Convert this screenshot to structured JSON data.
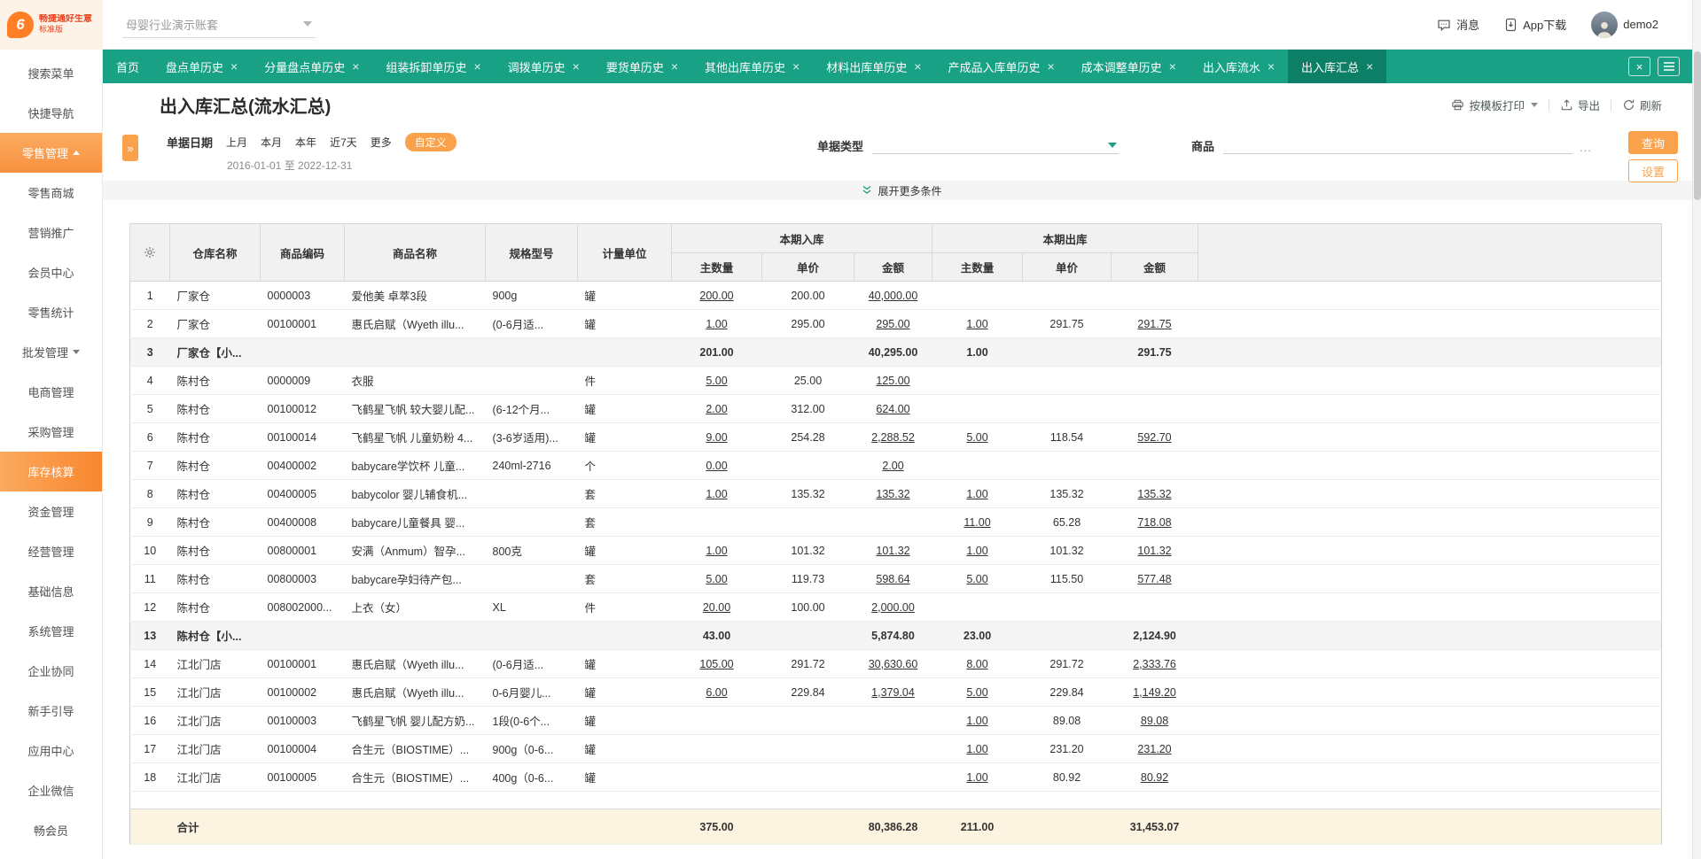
{
  "topbar": {
    "logo_title": "畅捷通好生意",
    "logo_subtitle": "标准版",
    "account_select": "母婴行业演示账套",
    "messages_label": "消息",
    "app_download_label": "App下载",
    "username": "demo2"
  },
  "tabs": {
    "items": [
      {
        "label": "首页",
        "closable": false,
        "active": false
      },
      {
        "label": "盘点单历史",
        "closable": true,
        "active": false
      },
      {
        "label": "分量盘点单历史",
        "closable": true,
        "active": false
      },
      {
        "label": "组装拆卸单历史",
        "closable": true,
        "active": false
      },
      {
        "label": "调拨单历史",
        "closable": true,
        "active": false
      },
      {
        "label": "要货单历史",
        "closable": true,
        "active": false
      },
      {
        "label": "其他出库单历史",
        "closable": true,
        "active": false
      },
      {
        "label": "材料出库单历史",
        "closable": true,
        "active": false
      },
      {
        "label": "产成品入库单历史",
        "closable": true,
        "active": false
      },
      {
        "label": "成本调整单历史",
        "closable": true,
        "active": false
      },
      {
        "label": "出入库流水",
        "closable": true,
        "active": false
      },
      {
        "label": "出入库汇总",
        "closable": true,
        "active": true
      }
    ]
  },
  "sidebar": {
    "items": [
      {
        "label": "搜索菜单",
        "style": ""
      },
      {
        "label": "快捷导航",
        "style": ""
      },
      {
        "label": "零售管理",
        "style": "orange",
        "arrow": "up"
      },
      {
        "label": "零售商城",
        "style": ""
      },
      {
        "label": "营销推广",
        "style": ""
      },
      {
        "label": "会员中心",
        "style": ""
      },
      {
        "label": "零售统计",
        "style": ""
      },
      {
        "label": "批发管理",
        "style": "",
        "arrow": "down"
      },
      {
        "label": "电商管理",
        "style": ""
      },
      {
        "label": "采购管理",
        "style": ""
      },
      {
        "label": "库存核算",
        "style": "orange-active"
      },
      {
        "label": "资金管理",
        "style": ""
      },
      {
        "label": "经营管理",
        "style": ""
      },
      {
        "label": "基础信息",
        "style": ""
      },
      {
        "label": "系统管理",
        "style": ""
      },
      {
        "label": "企业协同",
        "style": ""
      },
      {
        "label": "新手引导",
        "style": ""
      },
      {
        "label": "应用中心",
        "style": ""
      },
      {
        "label": "企业微信",
        "style": ""
      },
      {
        "label": "畅会员",
        "style": ""
      }
    ]
  },
  "page": {
    "title": "出入库汇总(流水汇总)",
    "toolbar": {
      "print": "按模板打印",
      "export": "导出",
      "refresh": "刷新"
    },
    "filters": {
      "date_label": "单据日期",
      "quick_links": [
        "上月",
        "本月",
        "本年",
        "近7天",
        "更多"
      ],
      "custom_badge": "自定义",
      "date_range": "2016-01-01 至 2022-12-31",
      "doc_type_label": "单据类型",
      "product_label": "商品",
      "product_more": "...",
      "search_button": "查询",
      "settings_button": "设置",
      "expand_more": "展开更多条件"
    }
  },
  "table": {
    "headers": {
      "warehouse": "仓库名称",
      "code": "商品编码",
      "name": "商品名称",
      "spec": "规格型号",
      "unit": "计量单位",
      "in_group": "本期入库",
      "out_group": "本期出库",
      "qty": "主数量",
      "price": "单价",
      "amount": "金额"
    },
    "rows": [
      {
        "n": "1",
        "wh": "厂家仓",
        "code": "0000003",
        "name": "爱他美 卓萃3段",
        "spec": "900g",
        "unit": "罐",
        "iq": "200.00",
        "ip": "200.00",
        "ia": "40,000.00",
        "oq": "",
        "op": "",
        "oa": "",
        "st": false
      },
      {
        "n": "2",
        "wh": "厂家仓",
        "code": "00100001",
        "name": "惠氏启赋（Wyeth illu...",
        "spec": "(0-6月适...",
        "unit": "罐",
        "iq": "1.00",
        "ip": "295.00",
        "ia": "295.00",
        "oq": "1.00",
        "op": "291.75",
        "oa": "291.75",
        "st": false
      },
      {
        "n": "3",
        "wh": "厂家仓【小...",
        "code": "",
        "name": "",
        "spec": "",
        "unit": "",
        "iq": "201.00",
        "ip": "",
        "ia": "40,295.00",
        "oq": "1.00",
        "op": "",
        "oa": "291.75",
        "st": true
      },
      {
        "n": "4",
        "wh": "陈村仓",
        "code": "0000009",
        "name": "衣服",
        "spec": "",
        "unit": "件",
        "iq": "5.00",
        "ip": "25.00",
        "ia": "125.00",
        "oq": "",
        "op": "",
        "oa": "",
        "st": false
      },
      {
        "n": "5",
        "wh": "陈村仓",
        "code": "00100012",
        "name": "飞鹤星飞帆 较大婴儿配...",
        "spec": "(6-12个月...",
        "unit": "罐",
        "iq": "2.00",
        "ip": "312.00",
        "ia": "624.00",
        "oq": "",
        "op": "",
        "oa": "",
        "st": false
      },
      {
        "n": "6",
        "wh": "陈村仓",
        "code": "00100014",
        "name": "飞鹤星飞帆 儿童奶粉 4...",
        "spec": "(3-6岁适用)...",
        "unit": "罐",
        "iq": "9.00",
        "ip": "254.28",
        "ia": "2,288.52",
        "oq": "5.00",
        "op": "118.54",
        "oa": "592.70",
        "st": false
      },
      {
        "n": "7",
        "wh": "陈村仓",
        "code": "00400002",
        "name": "babycare学饮杯 儿童...",
        "spec": "240ml-2716",
        "unit": "个",
        "iq": "0.00",
        "ip": "",
        "ia": "2.00",
        "oq": "",
        "op": "",
        "oa": "",
        "st": false
      },
      {
        "n": "8",
        "wh": "陈村仓",
        "code": "00400005",
        "name": "babycolor 婴儿辅食机...",
        "spec": "",
        "unit": "套",
        "iq": "1.00",
        "ip": "135.32",
        "ia": "135.32",
        "oq": "1.00",
        "op": "135.32",
        "oa": "135.32",
        "st": false
      },
      {
        "n": "9",
        "wh": "陈村仓",
        "code": "00400008",
        "name": "babycare儿童餐具 婴...",
        "spec": "",
        "unit": "套",
        "iq": "",
        "ip": "",
        "ia": "",
        "oq": "11.00",
        "op": "65.28",
        "oa": "718.08",
        "st": false
      },
      {
        "n": "10",
        "wh": "陈村仓",
        "code": "00800001",
        "name": "安满（Anmum）智孕...",
        "spec": "800克",
        "unit": "罐",
        "iq": "1.00",
        "ip": "101.32",
        "ia": "101.32",
        "oq": "1.00",
        "op": "101.32",
        "oa": "101.32",
        "st": false
      },
      {
        "n": "11",
        "wh": "陈村仓",
        "code": "00800003",
        "name": "babycare孕妇待产包...",
        "spec": "",
        "unit": "套",
        "iq": "5.00",
        "ip": "119.73",
        "ia": "598.64",
        "oq": "5.00",
        "op": "115.50",
        "oa": "577.48",
        "st": false
      },
      {
        "n": "12",
        "wh": "陈村仓",
        "code": "008002000...",
        "name": "上衣（女）",
        "spec": "XL",
        "unit": "件",
        "iq": "20.00",
        "ip": "100.00",
        "ia": "2,000.00",
        "oq": "",
        "op": "",
        "oa": "",
        "st": false
      },
      {
        "n": "13",
        "wh": "陈村仓【小...",
        "code": "",
        "name": "",
        "spec": "",
        "unit": "",
        "iq": "43.00",
        "ip": "",
        "ia": "5,874.80",
        "oq": "23.00",
        "op": "",
        "oa": "2,124.90",
        "st": true
      },
      {
        "n": "14",
        "wh": "江北门店",
        "code": "00100001",
        "name": "惠氏启赋（Wyeth illu...",
        "spec": "(0-6月适...",
        "unit": "罐",
        "iq": "105.00",
        "ip": "291.72",
        "ia": "30,630.60",
        "oq": "8.00",
        "op": "291.72",
        "oa": "2,333.76",
        "st": false
      },
      {
        "n": "15",
        "wh": "江北门店",
        "code": "00100002",
        "name": "惠氏启赋（Wyeth illu...",
        "spec": "0-6月婴儿...",
        "unit": "罐",
        "iq": "6.00",
        "ip": "229.84",
        "ia": "1,379.04",
        "oq": "5.00",
        "op": "229.84",
        "oa": "1,149.20",
        "st": false
      },
      {
        "n": "16",
        "wh": "江北门店",
        "code": "00100003",
        "name": "飞鹤星飞帆 婴儿配方奶...",
        "spec": "1段(0-6个...",
        "unit": "罐",
        "iq": "",
        "ip": "",
        "ia": "",
        "oq": "1.00",
        "op": "89.08",
        "oa": "89.08",
        "st": false
      },
      {
        "n": "17",
        "wh": "江北门店",
        "code": "00100004",
        "name": "合生元（BIOSTIME）...",
        "spec": "900g（0-6...",
        "unit": "罐",
        "iq": "",
        "ip": "",
        "ia": "",
        "oq": "1.00",
        "op": "231.20",
        "oa": "231.20",
        "st": false
      },
      {
        "n": "18",
        "wh": "江北门店",
        "code": "00100005",
        "name": "合生元（BIOSTIME）...",
        "spec": "400g（0-6...",
        "unit": "罐",
        "iq": "",
        "ip": "",
        "ia": "",
        "oq": "1.00",
        "op": "80.92",
        "oa": "80.92",
        "st": false
      }
    ],
    "total": {
      "label": "合计",
      "in_qty": "375.00",
      "in_amt": "80,386.28",
      "out_qty": "211.00",
      "out_amt": "31,453.07"
    }
  },
  "colors": {
    "accent_teal": "#18a185",
    "accent_teal_dark": "#0d7f66",
    "accent_orange": "#f9a24b",
    "logo_red": "#e8401c",
    "total_row_bg": "#fdf3e1"
  }
}
